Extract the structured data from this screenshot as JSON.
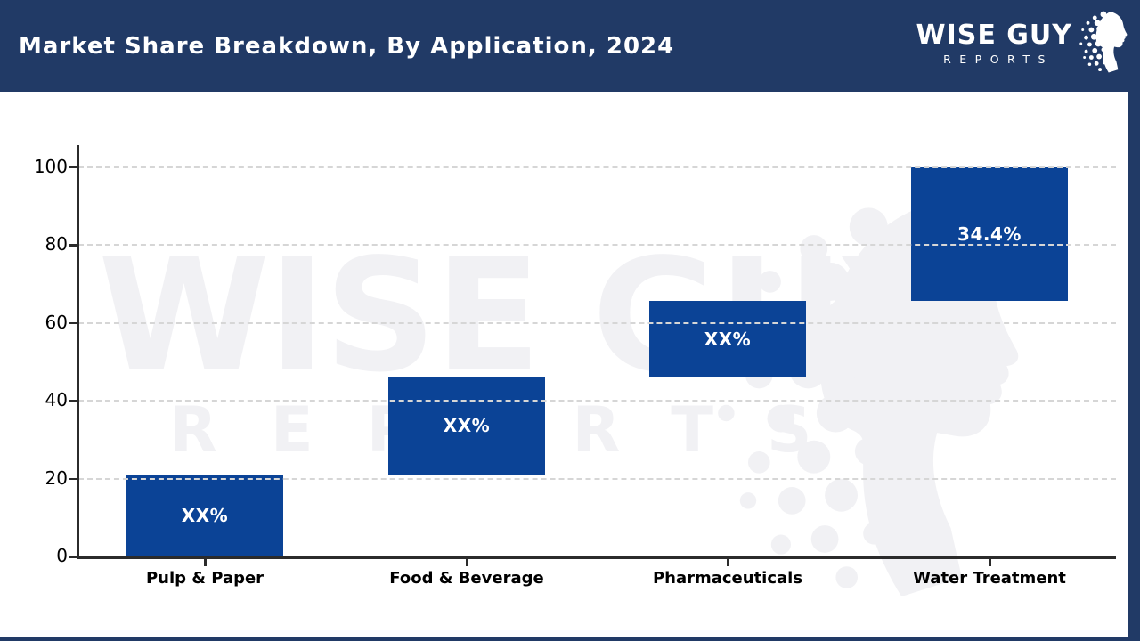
{
  "header": {
    "title": "Market Share Breakdown, By Application, 2024",
    "brand": {
      "line1": "WISE GUY",
      "line2": "REPORTS"
    }
  },
  "watermark": {
    "line1": "WISE GUY",
    "line2": "REPORTS"
  },
  "colors": {
    "header_bg": "#213A66",
    "bar": "#0B4396",
    "watermark": "#F1F1F4",
    "grid": "#D6D6D6",
    "axis": "#2B2B2B",
    "bar_label": "#FFFFFF"
  },
  "chart_data": {
    "type": "bar",
    "subtype": "waterfall",
    "title": "Market Share Breakdown, By Application, 2024",
    "xlabel": "",
    "ylabel": "",
    "categories": [
      "Pulp & Paper",
      "Food & Beverage",
      "Pharmaceuticals",
      "Water Treatment"
    ],
    "bars": [
      {
        "category": "Pulp & Paper",
        "start": 0,
        "end": 21,
        "value_label": "XX%"
      },
      {
        "category": "Food & Beverage",
        "start": 21,
        "end": 46,
        "value_label": "XX%"
      },
      {
        "category": "Pharmaceuticals",
        "start": 46,
        "end": 65.6,
        "value_label": "XX%"
      },
      {
        "category": "Water Treatment",
        "start": 65.6,
        "end": 100,
        "value_label": "34.4%"
      }
    ],
    "yticks": [
      0,
      20,
      40,
      60,
      80,
      100
    ],
    "ylim": [
      0,
      105.6
    ],
    "grid": "horizontal-dashed",
    "legend": "none"
  }
}
